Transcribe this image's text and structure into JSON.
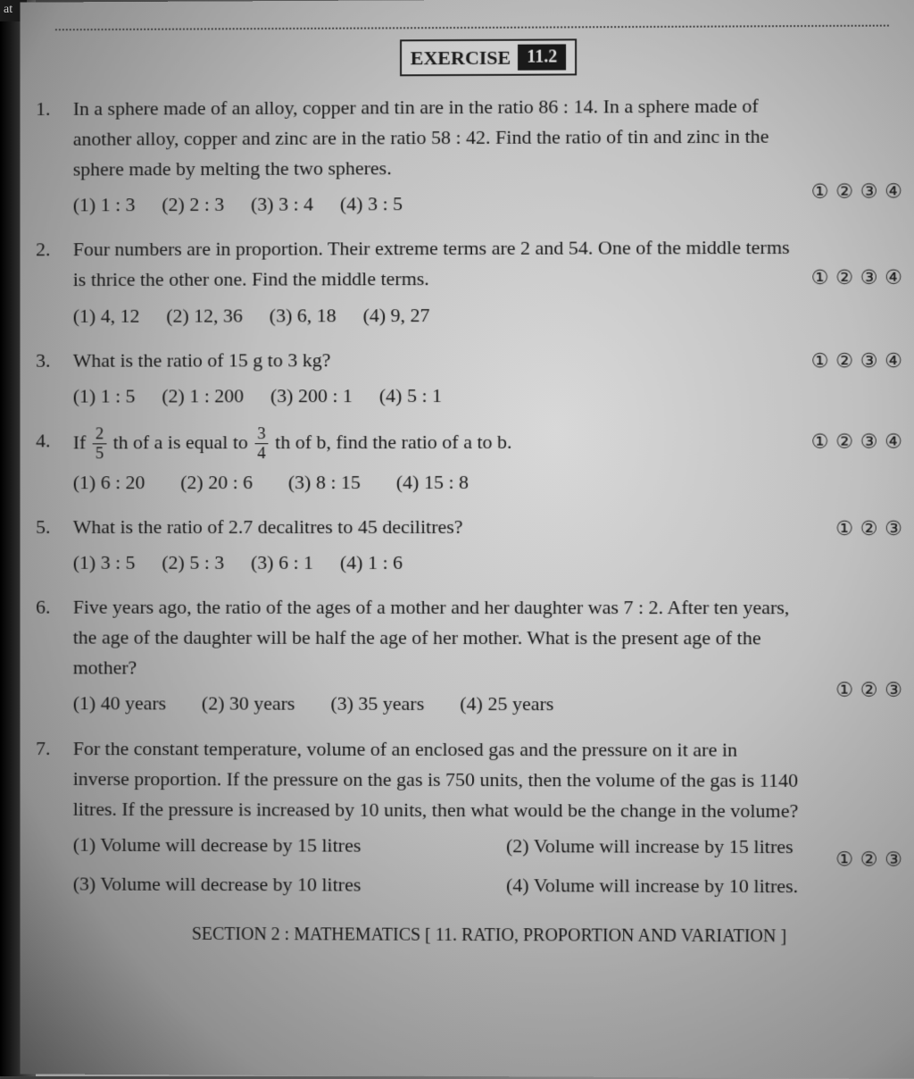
{
  "tab_label": "at",
  "exercise": {
    "label": "EXERCISE",
    "number": "11.2"
  },
  "circled_digits": [
    "①",
    "②",
    "③",
    "④"
  ],
  "questions": [
    {
      "num": "1.",
      "text": "In a sphere made of an alloy, copper and tin are in the ratio 86 : 14. In a sphere made of another alloy, copper and zinc are in the ratio 58 : 42. Find the ratio of tin and zinc in the sphere made by melting the two spheres.",
      "options": [
        "(1) 1 : 3",
        "(2) 2 : 3",
        "(3) 3 : 4",
        "(4) 3 : 5"
      ],
      "circles": "① ② ③ ④",
      "circles_class": "c1"
    },
    {
      "num": "2.",
      "text": "Four numbers are in proportion. Their extreme terms are 2 and 54. One of the middle terms is thrice the other one. Find the middle terms.",
      "options": [
        "(1) 4, 12",
        "(2) 12, 36",
        "(3) 6, 18",
        "(4) 9, 27"
      ],
      "circles": "① ② ③ ④",
      "circles_class": "c2"
    },
    {
      "num": "3.",
      "text": "What is the ratio of 15 g to 3 kg?",
      "options": [
        "(1) 1 : 5",
        "(2) 1 : 200",
        "(3) 200 : 1",
        "(4) 5 : 1"
      ],
      "circles": "① ② ③ ④",
      "circles_class": "c3"
    },
    {
      "num": "4.",
      "frac1": {
        "n": "2",
        "d": "5"
      },
      "frac2": {
        "n": "3",
        "d": "4"
      },
      "text_pre": "If ",
      "text_mid1": "th of a is equal to ",
      "text_mid2": "th of b, find the ratio of a to b.",
      "options": [
        "(1) 6 : 20",
        "(2) 20 : 6",
        "(3) 8 : 15",
        "(4) 15 : 8"
      ],
      "circles": "① ② ③ ④",
      "circles_class": "c4"
    },
    {
      "num": "5.",
      "text": "What is the ratio of 2.7 decalitres to 45 decilitres?",
      "options": [
        "(1) 3 : 5",
        "(2) 5 : 3",
        "(3) 6 : 1",
        "(4) 1 : 6"
      ],
      "circles": "① ② ③",
      "circles_class": "c5"
    },
    {
      "num": "6.",
      "text": "Five years ago, the ratio of the ages of a mother and her daughter was 7 : 2. After ten years, the age of the daughter will be half the age of her mother. What is the present age of the mother?",
      "options": [
        "(1) 40 years",
        "(2) 30 years",
        "(3) 35 years",
        "(4) 25 years"
      ],
      "circles": "① ② ③",
      "circles_class": "c6"
    },
    {
      "num": "7.",
      "text": "For the constant temperature, volume of an enclosed gas and the pressure on it are in inverse proportion. If the pressure on the gas is 750 units, then the volume of the gas is 1140 litres. If the pressure is increased by 10 units, then what would be the change in the volume?",
      "options": [
        "(1) Volume will decrease by 15 litres",
        "(2) Volume will increase by 15 litres",
        "(3) Volume will decrease by 10 litres",
        "(4) Volume will increase by 10 litres."
      ],
      "circles": "① ② ③",
      "circles_class": "c7",
      "two_col": true
    }
  ],
  "footer": "SECTION 2 : MATHEMATICS [ 11. RATIO, PROPORTION AND VARIATION ]"
}
